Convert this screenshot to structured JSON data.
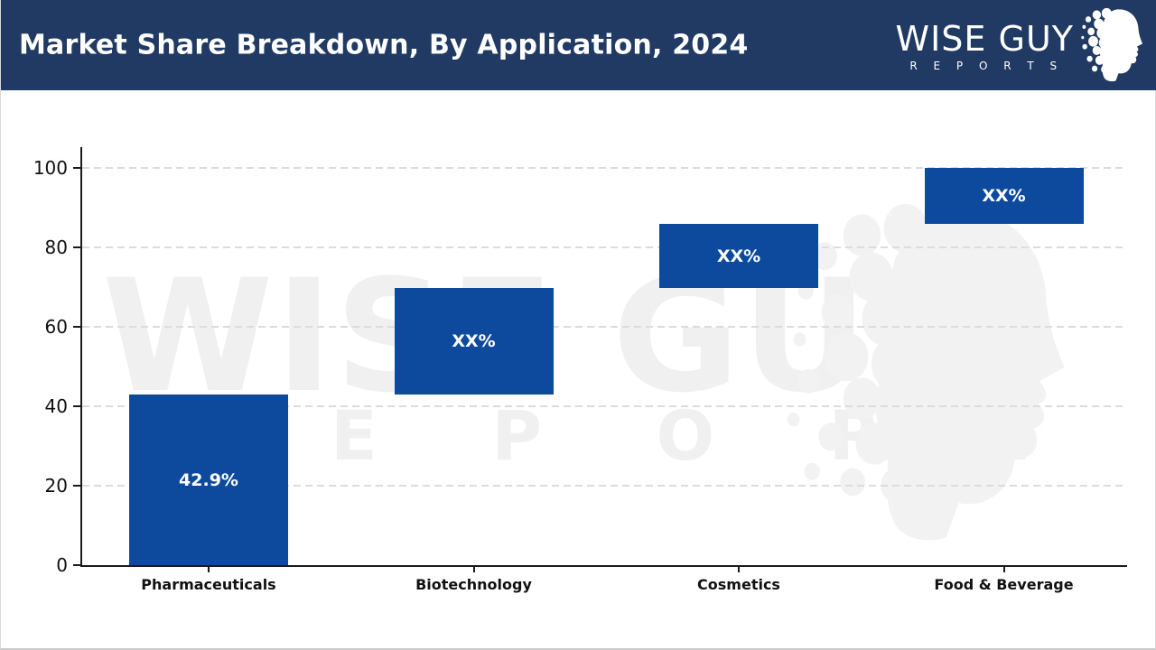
{
  "header": {
    "title": "Market Share Breakdown, By Application, 2024",
    "logo": {
      "line1": "WISE GUY",
      "line2": "R E P O R T S"
    }
  },
  "watermark": {
    "line1": "WISE GUY",
    "line2": "R E P O R T S"
  },
  "colors": {
    "header_bg": "#213a64",
    "bar": "#0d4a9e",
    "grid": "#dcdcdc",
    "axis": "#1a1a1a",
    "value_label": "#ffffff",
    "watermark": "#f0f0f1"
  },
  "chart_data": {
    "type": "bar",
    "subtype": "waterfall",
    "title": "Market Share Breakdown, By Application, 2024",
    "categories": [
      "Pharmaceuticals",
      "Biotechnology",
      "Cosmetics",
      "Food & Beverage"
    ],
    "segments": [
      {
        "category": "Pharmaceuticals",
        "start": 0,
        "end": 42.9,
        "label": "42.9%"
      },
      {
        "category": "Biotechnology",
        "start": 42.9,
        "end": 69.8,
        "label": "XX%"
      },
      {
        "category": "Cosmetics",
        "start": 69.8,
        "end": 85.8,
        "label": "XX%"
      },
      {
        "category": "Food & Beverage",
        "start": 85.8,
        "end": 100,
        "label": "XX%"
      }
    ],
    "y_ticks": [
      0,
      20,
      40,
      60,
      80,
      100
    ],
    "ylim": [
      0,
      105
    ],
    "xlabel": "",
    "ylabel": "",
    "grid": "horizontal-dashed",
    "legend": false,
    "bar_color": "#0d4a9e"
  }
}
